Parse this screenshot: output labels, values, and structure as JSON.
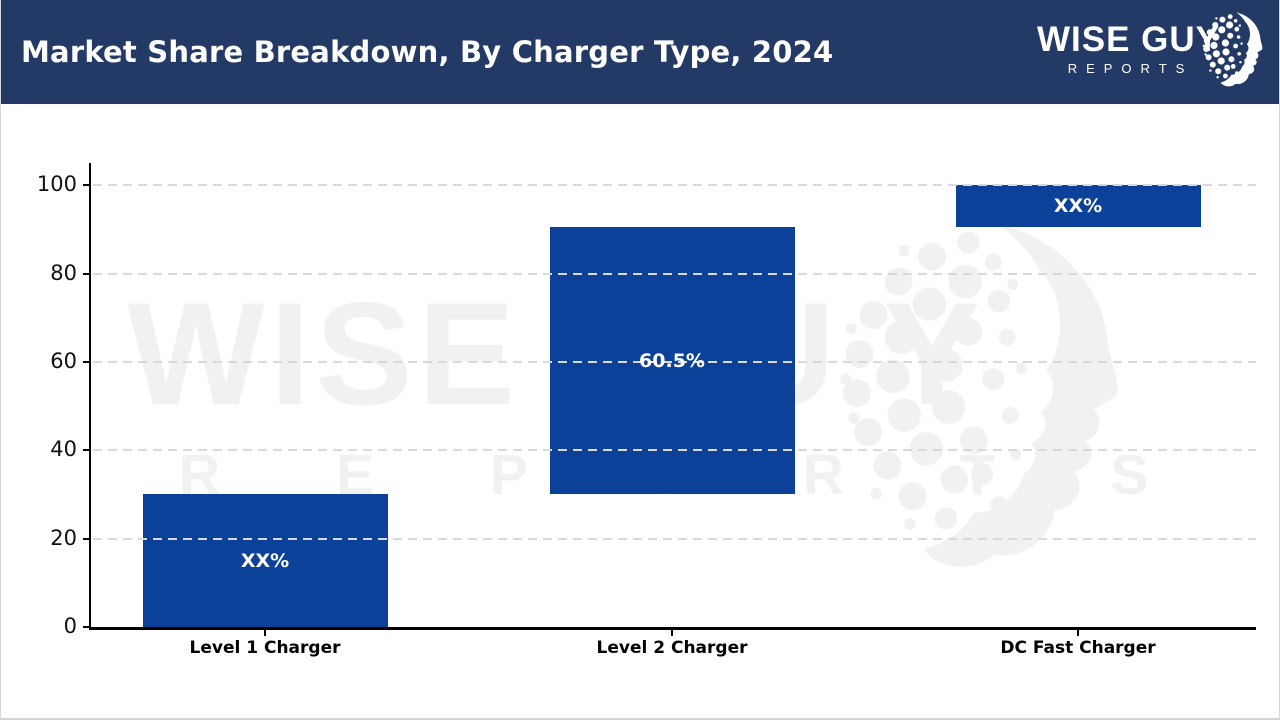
{
  "header": {
    "title": "Market Share Breakdown, By Charger Type, 2024",
    "logo": {
      "line1": "WISE GUY",
      "line2": "REPORTS"
    }
  },
  "watermark": {
    "line1": "WISE G U Y",
    "line2": "R E P O R T S"
  },
  "chart_data": {
    "type": "bar",
    "subtype": "stacked-waterfall-segments",
    "title": "Market Share Breakdown, By Charger Type, 2024",
    "categories": [
      "Level 1 Charger",
      "Level 2 Charger",
      "DC Fast Charger"
    ],
    "segments": [
      {
        "category": "Level 1 Charger",
        "start": 0,
        "end": 30,
        "label": "XX%"
      },
      {
        "category": "Level 2 Charger",
        "start": 30,
        "end": 90.5,
        "label": "60.5%"
      },
      {
        "category": "DC Fast Charger",
        "start": 90.5,
        "end": 100,
        "label": "XX%"
      }
    ],
    "xlabel": "",
    "ylabel": "",
    "ylim": [
      0,
      100
    ],
    "yticks": [
      0,
      20,
      40,
      60,
      80,
      100
    ],
    "grid": "dashed-horizontal",
    "legend": "none"
  },
  "colors": {
    "header_bg": "#243A66",
    "bar": "#0B4198",
    "bar_label_text": "#FFFFFF",
    "title_text": "#FFFFFF",
    "grid": "#D9D9D9",
    "axis": "#000000",
    "tick_text": "#111111",
    "watermark": "#F1F1F4",
    "frame_border": "#D8D8D8"
  }
}
